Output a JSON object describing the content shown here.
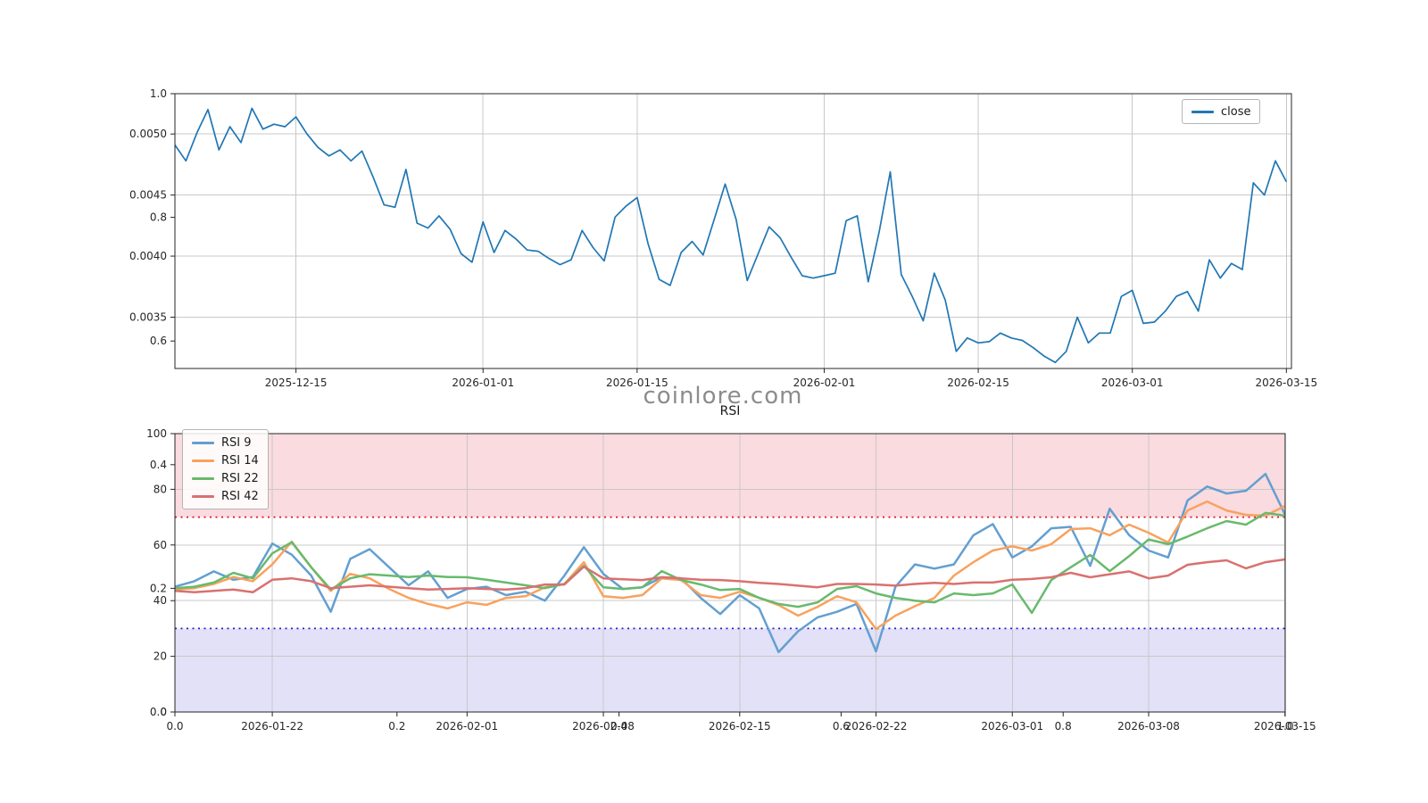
{
  "watermark": "coinlore.com",
  "colors": {
    "figure_background": "#ffffff",
    "grid": "#c8c8c8",
    "axis_border": "#262626",
    "tick_label": "#262626",
    "watermark": "#8c8c8c",
    "overbought_band": "#fadbdf",
    "oversold_band": "#e2e1f7",
    "overbought_line": "#dc1423",
    "oversold_line": "#2121cc"
  },
  "overlay_axis": {
    "note": "secondary normalized axis labels overlapping both charts",
    "x_ticks": [
      "0.0",
      "0.2",
      "0.4",
      "0.6",
      "0.8",
      "1.0"
    ],
    "y_ticks": [
      "1.0",
      "0.8",
      "0.6",
      "0.4",
      "0.2",
      "0.0"
    ]
  },
  "chart_data": [
    {
      "type": "line",
      "title": "",
      "legend_position": "upper right",
      "grid": true,
      "x_start": "2025-12-04",
      "frequency": "daily",
      "x_ticks": [
        "2025-12-15",
        "2026-01-01",
        "2026-01-15",
        "2026-02-01",
        "2026-02-15",
        "2026-03-01",
        "2026-03-15"
      ],
      "x_tick_day_index": [
        11,
        28,
        42,
        59,
        73,
        87,
        101
      ],
      "y_ticks": [
        "0.0035",
        "0.0040",
        "0.0045",
        "0.0050"
      ],
      "y_tick_values": [
        0.0035,
        0.004,
        0.0045,
        0.005
      ],
      "ylim": [
        0.00308,
        0.00533
      ],
      "series": [
        {
          "name": "close",
          "color": "#2077b4",
          "values": [
            0.00491,
            0.00478,
            0.00501,
            0.0052,
            0.00487,
            0.00506,
            0.00493,
            0.00521,
            0.00504,
            0.00508,
            0.00506,
            0.00514,
            0.005,
            0.00489,
            0.00482,
            0.00487,
            0.00478,
            0.00486,
            0.00465,
            0.00442,
            0.0044,
            0.00471,
            0.00427,
            0.00423,
            0.00433,
            0.00422,
            0.00402,
            0.00395,
            0.00428,
            0.00403,
            0.00421,
            0.00414,
            0.00405,
            0.00404,
            0.00398,
            0.00393,
            0.00397,
            0.00421,
            0.00407,
            0.00396,
            0.00432,
            0.00441,
            0.00448,
            0.0041,
            0.00381,
            0.00376,
            0.00403,
            0.00412,
            0.00401,
            0.0043,
            0.00459,
            0.0043,
            0.0038,
            0.00402,
            0.00424,
            0.00415,
            0.00399,
            0.00384,
            0.00382,
            0.00384,
            0.00386,
            0.00429,
            0.00433,
            0.00379,
            0.0042,
            0.00469,
            0.00385,
            0.00367,
            0.00347,
            0.00386,
            0.00364,
            0.00322,
            0.00333,
            0.00329,
            0.0033,
            0.00337,
            0.00333,
            0.00331,
            0.00325,
            0.00318,
            0.00313,
            0.00322,
            0.0035,
            0.00329,
            0.00337,
            0.00337,
            0.00367,
            0.00372,
            0.00345,
            0.00346,
            0.00355,
            0.00367,
            0.00371,
            0.00355,
            0.00397,
            0.00382,
            0.00394,
            0.00389,
            0.0046,
            0.0045,
            0.00478,
            0.00461
          ]
        }
      ]
    },
    {
      "type": "line",
      "title": "RSI",
      "legend_position": "upper left",
      "grid": true,
      "x_start": "2026-01-17",
      "frequency": "daily",
      "x_ticks": [
        "2026-01-22",
        "2026-02-01",
        "2026-02-08",
        "2026-02-15",
        "2026-02-22",
        "2026-03-01",
        "2026-03-08",
        "2026-03-15"
      ],
      "x_tick_day_index": [
        5,
        15,
        22,
        29,
        36,
        43,
        50,
        57
      ],
      "y_ticks": [
        "0",
        "20",
        "40",
        "60",
        "80",
        "100"
      ],
      "y_tick_values": [
        0,
        20,
        40,
        60,
        80,
        100
      ],
      "ylim": [
        0,
        100
      ],
      "overbought_level": 70,
      "oversold_level": 30,
      "series": [
        {
          "name": "RSI 9",
          "color": "#639fd1",
          "values": [
            45,
            47,
            50.5,
            47.5,
            48.5,
            60.5,
            56.5,
            49,
            36,
            55,
            58.5,
            52,
            45.5,
            50.5,
            41,
            44.2,
            45,
            42,
            43.2,
            40,
            49,
            59.2,
            49.6,
            44.2,
            44.8,
            48.4,
            48,
            41,
            35.2,
            42,
            37.2,
            21.5,
            29,
            34,
            36,
            38.8,
            21.8,
            45,
            53,
            51.5,
            53,
            63.5,
            67.5,
            55.5,
            59.5,
            66,
            66.5,
            52.5,
            73,
            63.5,
            58,
            55.5,
            76,
            81,
            78.5,
            79.5,
            85.5,
            71
          ]
        },
        {
          "name": "RSI 14",
          "color": "#f8a25e",
          "values": [
            44,
            44.5,
            46,
            48.5,
            47,
            53,
            61.2,
            52,
            43.5,
            49.6,
            48,
            44.2,
            41,
            38.8,
            37.2,
            39.4,
            38.5,
            41,
            41.6,
            44.8,
            46,
            53.8,
            41.6,
            41,
            42,
            48,
            47.4,
            42,
            41,
            43.2,
            41,
            38.4,
            34.6,
            37.8,
            41.6,
            39.4,
            29.8,
            34.6,
            38,
            41,
            49,
            53.8,
            58,
            59.5,
            58,
            60.3,
            65.7,
            66,
            63.5,
            67.3,
            64.4,
            60.9,
            72.4,
            75.6,
            72.4,
            70.8,
            70.5,
            74
          ]
        },
        {
          "name": "RSI 22",
          "color": "#68ba6c",
          "values": [
            44.5,
            45,
            46.5,
            50,
            48,
            57,
            61,
            52,
            44,
            48,
            49.5,
            49,
            48.5,
            49,
            48.5,
            48.4,
            47.5,
            46.5,
            45.5,
            44.5,
            46,
            52.5,
            44.8,
            44.2,
            44.8,
            50.6,
            47.4,
            45.8,
            43.8,
            44.2,
            41,
            38.8,
            37.8,
            39.4,
            44.2,
            45.2,
            42.6,
            41,
            40,
            39.4,
            42.6,
            42,
            42.6,
            45.8,
            35.6,
            47.4,
            52,
            56.4,
            50.6,
            56,
            62,
            60.3,
            63,
            66,
            68.6,
            67.3,
            71.5,
            70.5
          ]
        },
        {
          "name": "RSI 42",
          "color": "#d9716f",
          "values": [
            43.5,
            43,
            43.5,
            44,
            43,
            47.5,
            48,
            47,
            44.5,
            45,
            45.5,
            45,
            44.5,
            44,
            44.2,
            44.5,
            44.2,
            44,
            44.5,
            45.8,
            45.8,
            52.2,
            48,
            47.7,
            47.4,
            48.4,
            48,
            47.5,
            47.4,
            47,
            46.4,
            46,
            45.4,
            44.8,
            46,
            46,
            45.8,
            45.4,
            46,
            46.4,
            46,
            46.5,
            46.5,
            47.5,
            47.8,
            48.4,
            50,
            48.4,
            49.5,
            50.5,
            48,
            49,
            52.9,
            53.8,
            54.5,
            51.6,
            53.8,
            54.8
          ]
        }
      ]
    }
  ]
}
